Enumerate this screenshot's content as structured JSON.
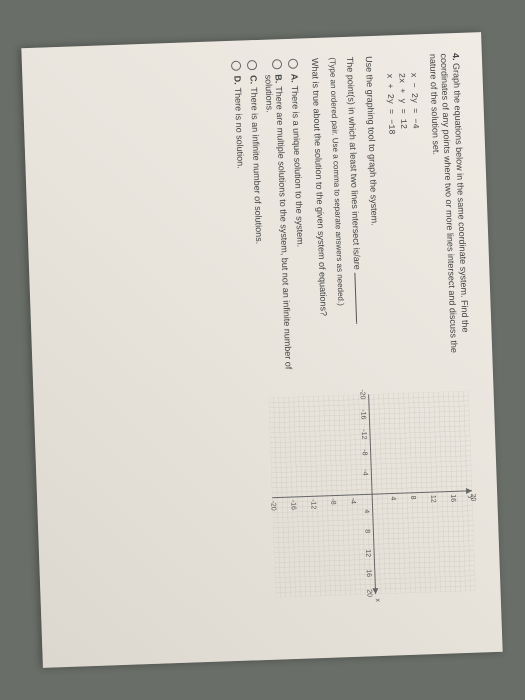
{
  "problem_number": "4.",
  "intro": "Graph the equations below in the same coordinate system. Find the coordinates of any points where two or more lines intersect and discuss the nature of the solution set.",
  "equations": {
    "eq1": "x − 2y = −4",
    "eq2": "2x + y = 12",
    "eq3": "x + 2y = −18"
  },
  "graph_tool": "Use the graphing tool to graph the system.",
  "point_question": "The point(s) in which at least two lines intersect is/are",
  "type_hint": "(Type an ordered pair. Use a comma to separate answers as needed.)",
  "solution_question": "What is true about the solution to the given system of equations?",
  "options": {
    "a": {
      "label": "A.",
      "text": "There is a unique solution to the system."
    },
    "b": {
      "label": "B.",
      "text": "There are multiple solutions to the system, but not an infinite number of solutions."
    },
    "c": {
      "label": "C.",
      "text": "There is an infinite number of solutions."
    },
    "d": {
      "label": "D.",
      "text": "There is no solution."
    }
  },
  "graph": {
    "xlim": [
      -20,
      20
    ],
    "ylim": [
      -20,
      20
    ],
    "tick_step": 4,
    "grid_color": "#d0cbc0",
    "axis_color": "#666",
    "xlabel": "x",
    "ylabel": "y",
    "xticks": [
      "-20",
      "-16",
      "-12",
      "-8",
      "-4",
      "4",
      "8",
      "12",
      "16",
      "20"
    ],
    "yticks": [
      "20",
      "16",
      "12",
      "8",
      "4",
      "-4",
      "-8",
      "-12",
      "-16",
      "-20"
    ]
  }
}
